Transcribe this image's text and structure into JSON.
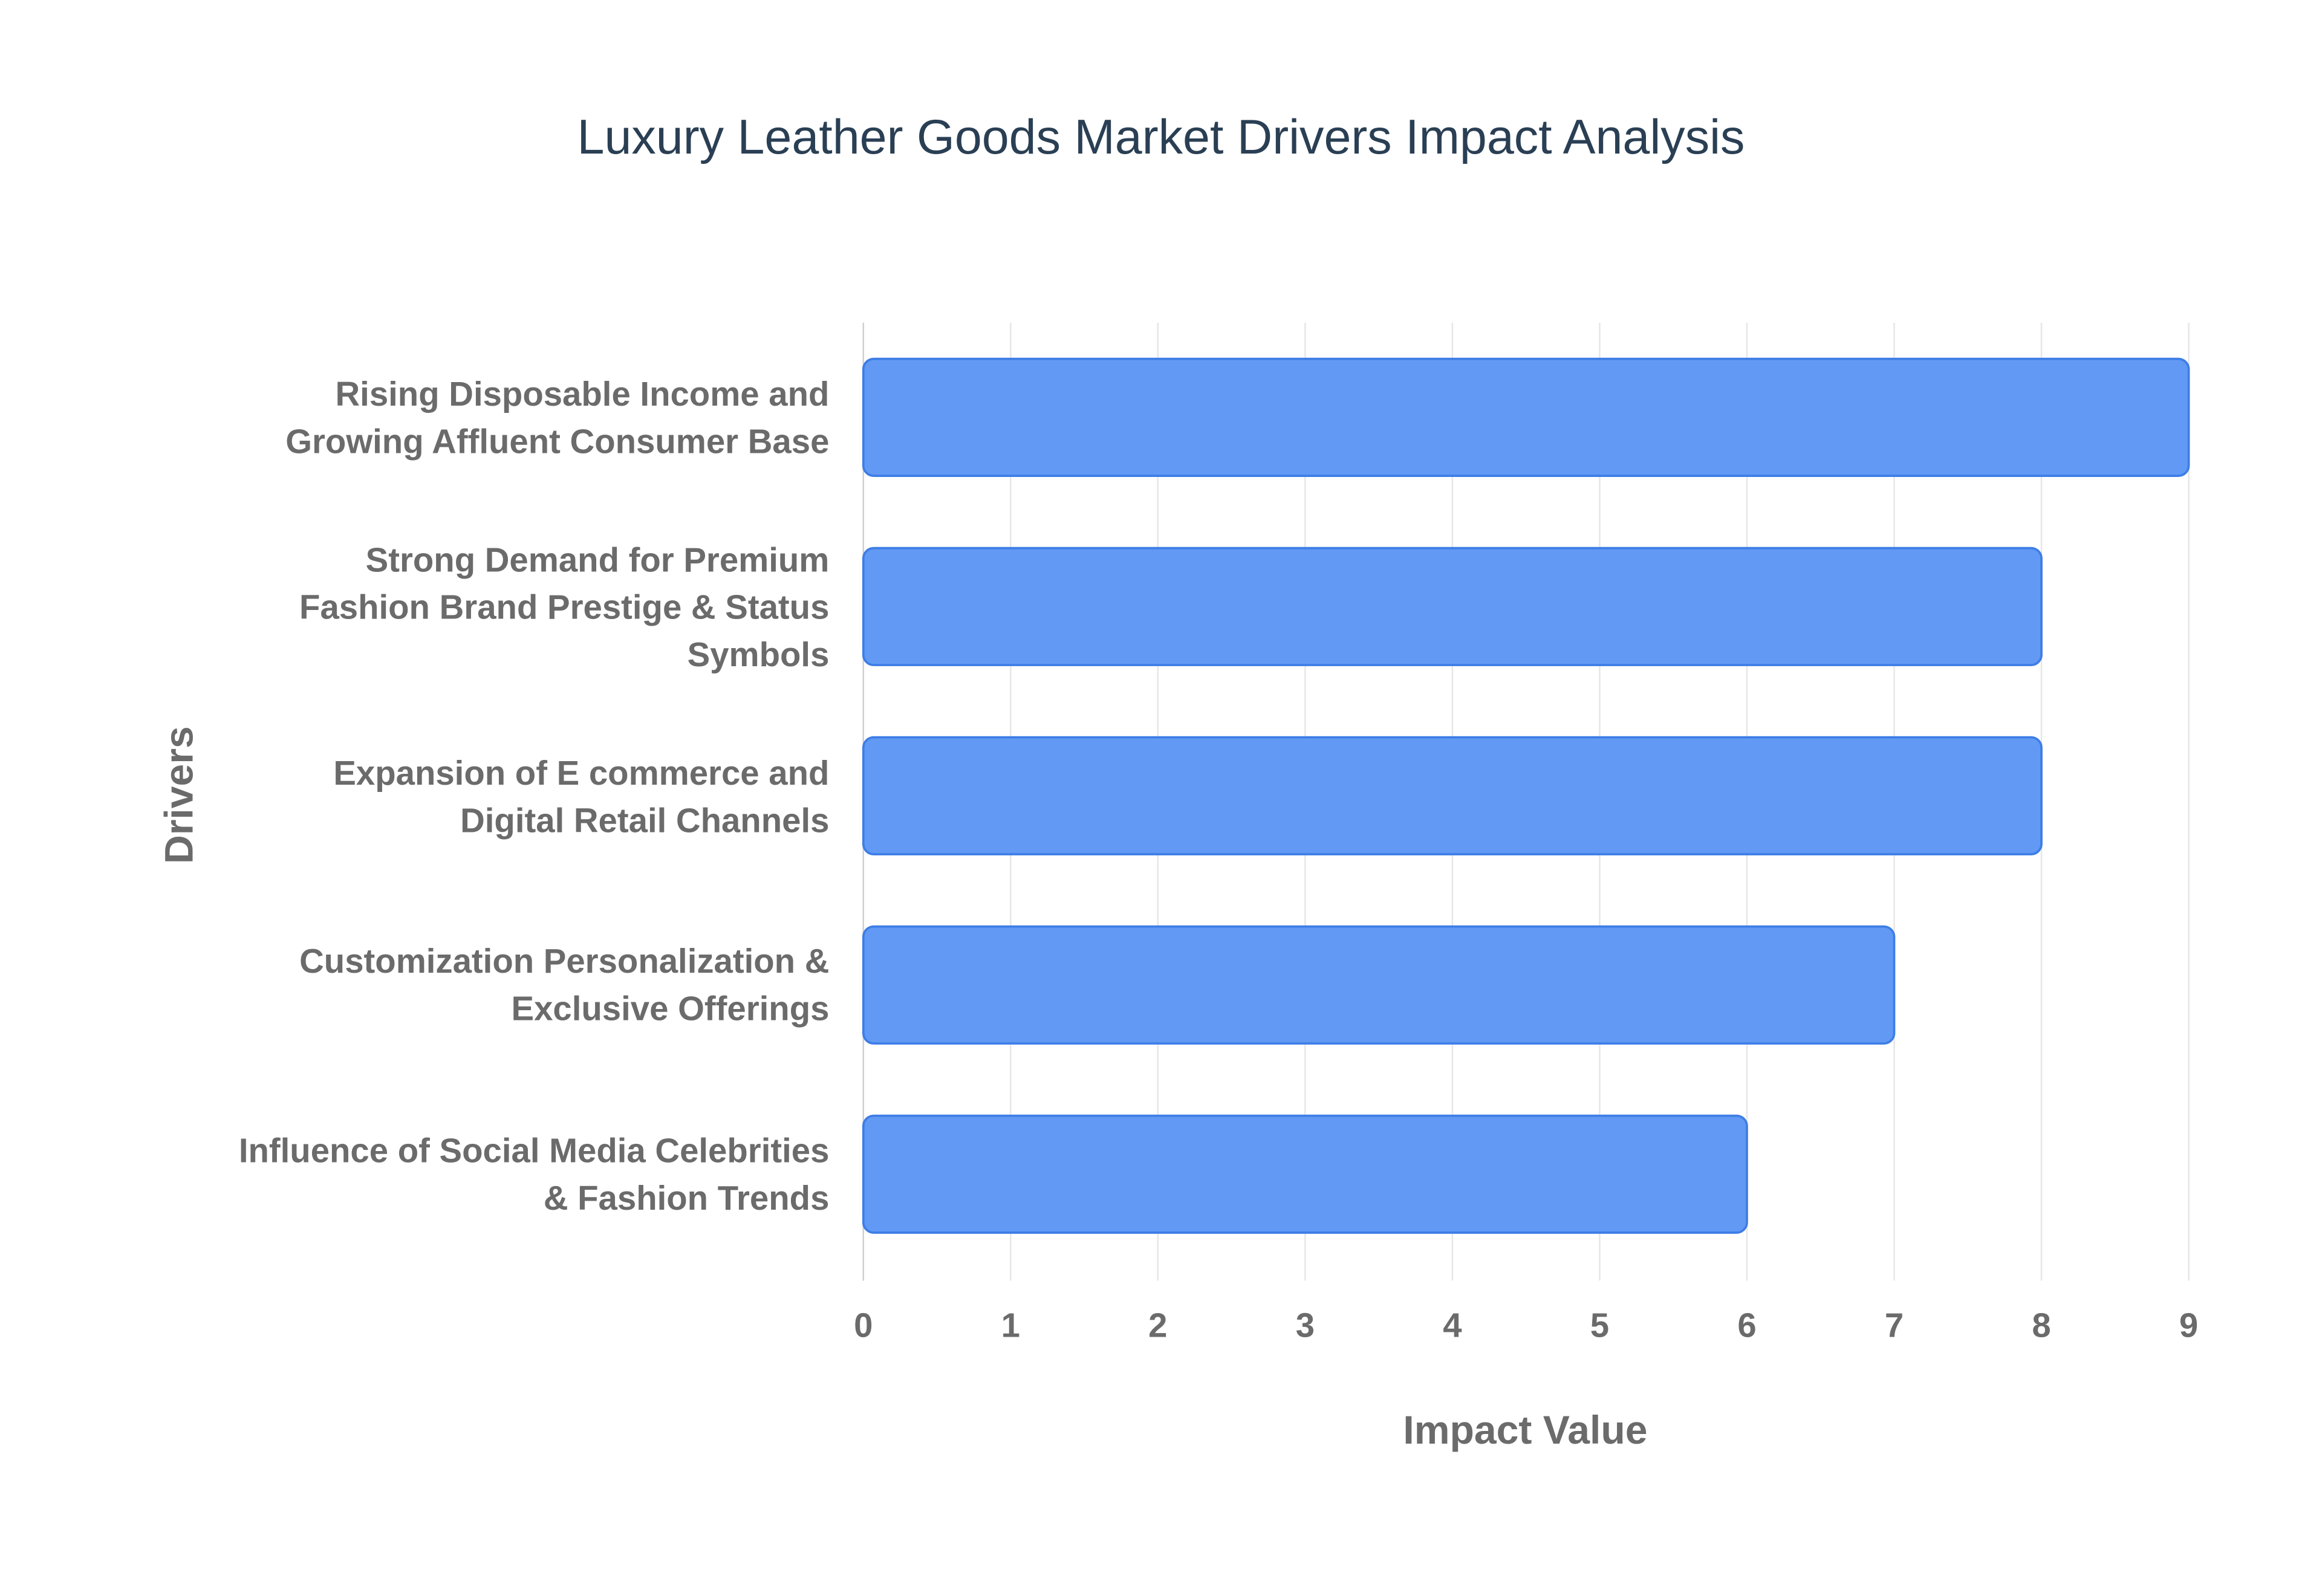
{
  "chart_data": {
    "type": "hbar",
    "title": "Luxury Leather Goods Market Drivers Impact Analysis",
    "x_label": "Impact Value",
    "y_label": "Drivers",
    "categories": [
      "Rising Disposable Income and Growing Affluent Consumer Base",
      "Strong Demand for Premium Fashion Brand Prestige & Status Symbols",
      "Expansion of E commerce and Digital Retail Channels",
      "Customization Personalization & Exclusive Offerings",
      "Influence of Social Media Celebrities & Fashion Trends"
    ],
    "values": [
      9,
      8,
      8,
      7,
      6
    ],
    "color": "#6199f4",
    "xlim": [
      0,
      9
    ],
    "xticks": [
      0,
      1,
      2,
      3,
      4,
      5,
      6,
      7,
      8,
      9
    ],
    "grid": true
  }
}
